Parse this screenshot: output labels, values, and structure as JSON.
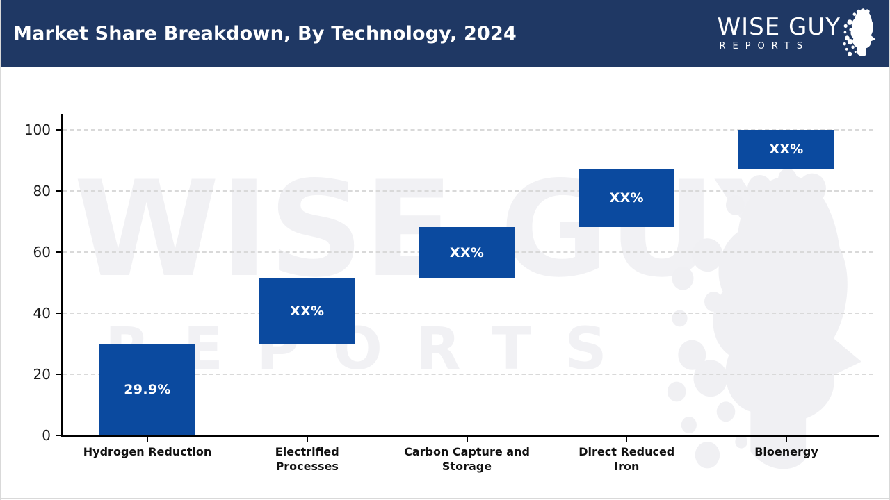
{
  "page": {
    "title": "Market Share Breakdown, By Technology, 2024"
  },
  "brand": {
    "name_line1": "WISE GUY",
    "name_line2": "REPORTS"
  },
  "watermark": {
    "line1": "WISE GUY",
    "line2": "REPORTS"
  },
  "chart_data": {
    "type": "bar",
    "variant": "waterfall",
    "title": "Market Share Breakdown, By Technology, 2024",
    "unit": "%",
    "categories": [
      "Hydrogen Reduction",
      "Electrified Processes",
      "Carbon Capture and Storage",
      "Direct Reduced Iron",
      "Bioenergy"
    ],
    "category_label_lines": [
      [
        "Hydrogen Reduction"
      ],
      [
        "Electrified",
        "Processes"
      ],
      [
        "Carbon Capture and",
        "Storage"
      ],
      [
        "Direct Reduced",
        "Iron"
      ],
      [
        "Bioenergy"
      ]
    ],
    "segments": [
      {
        "category": "Hydrogen Reduction",
        "start": 0,
        "end": 29.9,
        "label": "29.9%"
      },
      {
        "category": "Electrified Processes",
        "start": 29.9,
        "end": 51.3,
        "label": "XX%"
      },
      {
        "category": "Carbon Capture and Storage",
        "start": 51.3,
        "end": 68.2,
        "label": "XX%"
      },
      {
        "category": "Direct Reduced Iron",
        "start": 68.2,
        "end": 87.3,
        "label": "XX%"
      },
      {
        "category": "Bioenergy",
        "start": 87.3,
        "end": 100,
        "label": "XX%"
      }
    ],
    "y_ticks": [
      0,
      20,
      40,
      60,
      80,
      100
    ],
    "ylim": [
      0,
      105.3
    ],
    "grid": {
      "horizontal": true,
      "style": "dashed"
    },
    "legend": "none",
    "bar_color": "#0b4a9f",
    "bar_label_color": "#ffffff"
  },
  "colors": {
    "header_bg": "#1f3864",
    "bar": "#0b4a9f",
    "grid": "#d9d9d9",
    "axis": "#000000",
    "watermark": "#f1f1f4",
    "panel_border": "#d9d9d9"
  }
}
